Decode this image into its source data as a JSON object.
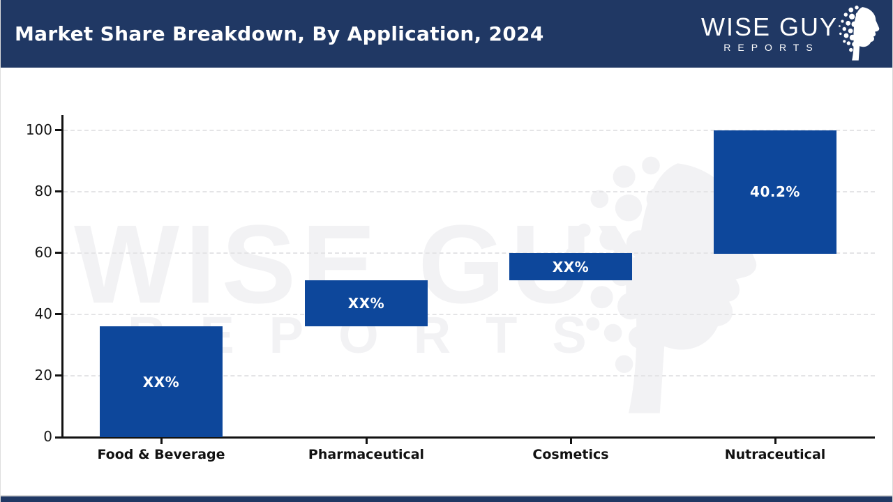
{
  "header": {
    "title": "Market Share Breakdown, By Application, 2024",
    "brand_line1": "WISE GUY",
    "brand_line2": "REPORTS"
  },
  "watermark": {
    "line1": "WISE GUY",
    "line2": "REPORTS"
  },
  "chart_data": {
    "type": "bar",
    "subtype": "waterfall",
    "title": "Market Share Breakdown, By Application, 2024",
    "categories": [
      "Food & Beverage",
      "Pharmaceutical",
      "Cosmetics",
      "Nutraceutical"
    ],
    "segments": [
      {
        "category": "Food & Beverage",
        "start": 0,
        "end": 36,
        "value": 36,
        "label": "XX%"
      },
      {
        "category": "Pharmaceutical",
        "start": 36,
        "end": 51,
        "value": 15,
        "label": "XX%"
      },
      {
        "category": "Cosmetics",
        "start": 51,
        "end": 60,
        "value": 9,
        "label": "XX%"
      },
      {
        "category": "Nutraceutical",
        "start": 59.8,
        "end": 100,
        "value": 40.2,
        "label": "40.2%"
      }
    ],
    "y_ticks": [
      0,
      20,
      40,
      60,
      80,
      100
    ],
    "ylim": [
      0,
      100
    ],
    "xlabel": "",
    "ylabel": "",
    "grid": "horizontal-dashed",
    "legend": "none"
  },
  "colors": {
    "header_bg": "#203864",
    "bar": "#0d479b",
    "bar_label": "#ffffff",
    "grid": "#e4e4e6",
    "axis": "#121212",
    "watermark": "#f2f2f4"
  }
}
